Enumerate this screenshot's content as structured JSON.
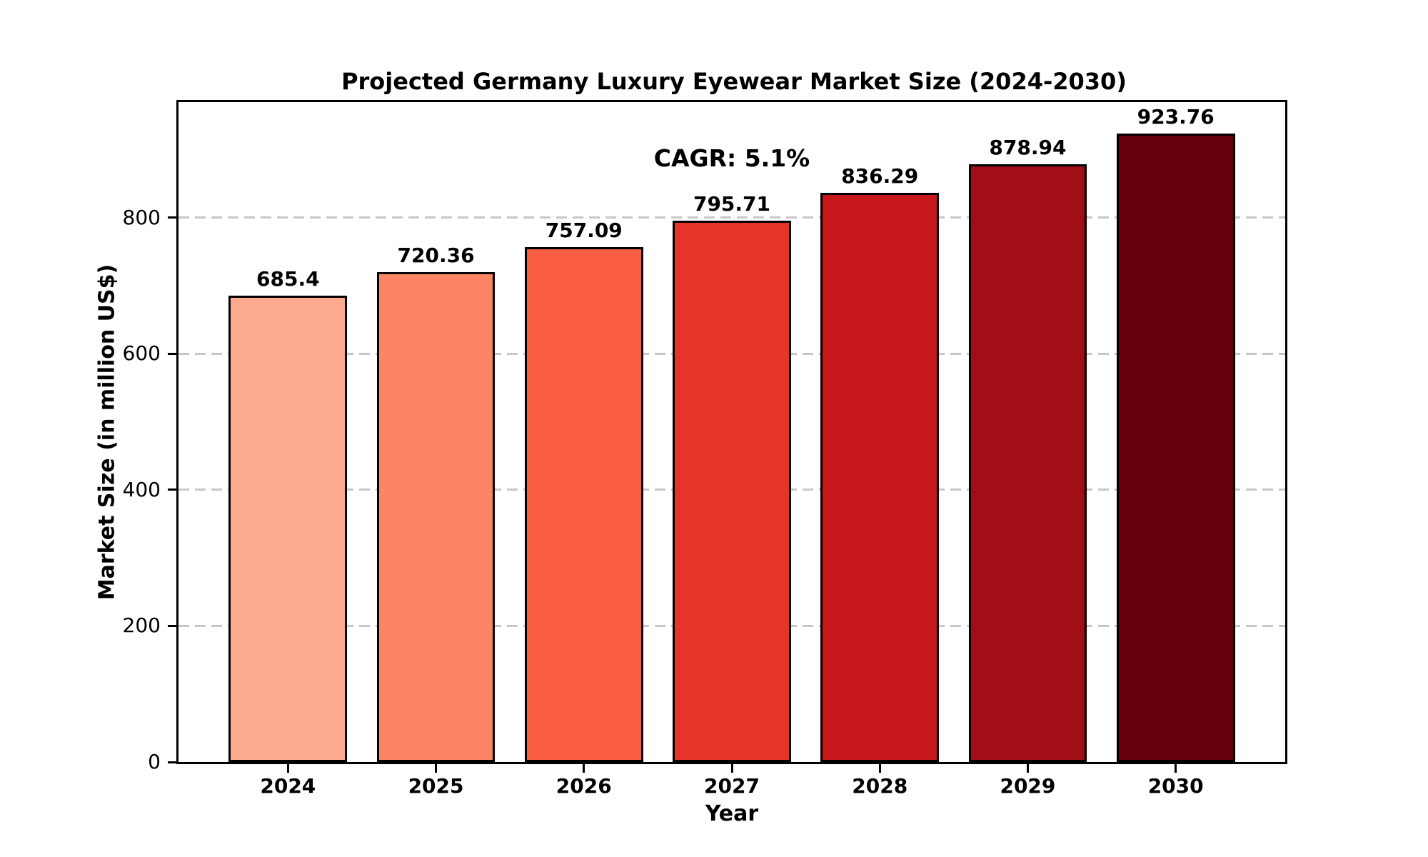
{
  "chart_data": {
    "type": "bar",
    "title": "Projected Germany Luxury Eyewear Market Size (2024-2030)",
    "annotation": "CAGR: 5.1%",
    "xlabel": "Year",
    "ylabel": "Market Size (in million US$)",
    "categories": [
      "2024",
      "2025",
      "2026",
      "2027",
      "2028",
      "2029",
      "2030"
    ],
    "values": [
      685.4,
      720.36,
      757.09,
      795.71,
      836.29,
      878.94,
      923.76
    ],
    "bar_labels": [
      "685.4",
      "720.36",
      "757.09",
      "795.71",
      "836.29",
      "878.94",
      "923.76"
    ],
    "bar_colors": [
      "#FCAA8E",
      "#FC8565",
      "#F85D42",
      "#E73429",
      "#C6171C",
      "#A10E15",
      "#67000D"
    ],
    "bar_edge_color": "#000000",
    "yticks": [
      0,
      200,
      400,
      600,
      800
    ],
    "ytick_labels": [
      "0",
      "200",
      "400",
      "600",
      "800"
    ],
    "ylim": [
      0,
      970
    ],
    "grid": {
      "axis": "y",
      "style": "dashed",
      "color": "#C8C8C8"
    },
    "legend": "none",
    "plot_border": "full box, black"
  }
}
